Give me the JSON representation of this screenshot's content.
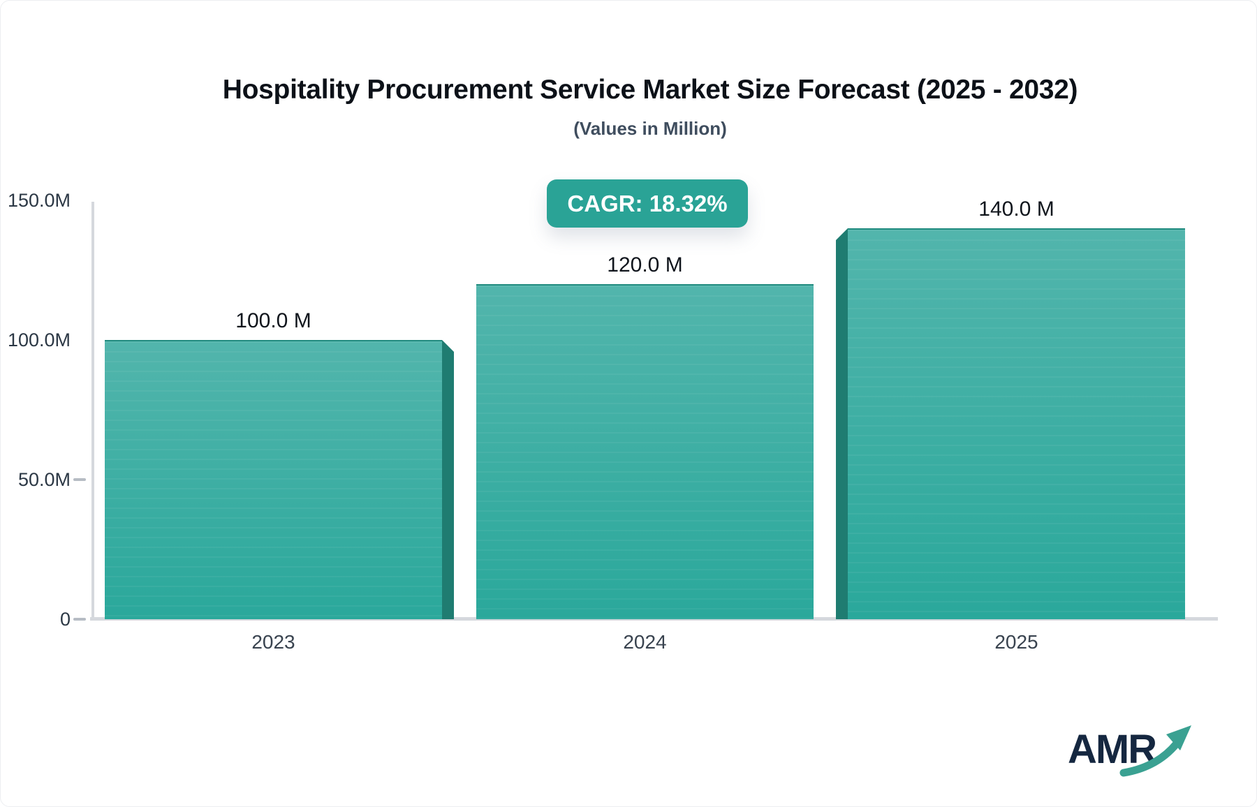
{
  "title": "Hospitality Procurement Service Market Size Forecast (2025 - 2032)",
  "subtitle": "(Values in Million)",
  "cagr_badge": "CAGR: 18.32%",
  "logo": {
    "text": "AMR",
    "arrow_icon": "trending-up-arrow"
  },
  "chart_data": {
    "type": "bar",
    "title": "Hospitality Procurement Service Market Size Forecast (2025 - 2032)",
    "subtitle": "(Values in Million)",
    "unit": "Million (M)",
    "cagr_percent": 18.32,
    "categories": [
      "2023",
      "2024",
      "2025"
    ],
    "values": [
      100.0,
      120.0,
      140.0
    ],
    "value_labels": [
      "100.0 M",
      "120.0 M",
      "140.0 M"
    ],
    "xlabel": "",
    "ylabel": "",
    "ylim": [
      0,
      150
    ],
    "grid": false,
    "legend": null,
    "y_ticks": [
      {
        "label": "150.0M",
        "value": 150,
        "dash": false
      },
      {
        "label": "100.0M",
        "value": 100,
        "dash": false
      },
      {
        "label": "50.0M",
        "value": 50,
        "dash": true
      },
      {
        "label": "0",
        "value": 0,
        "dash": true
      }
    ],
    "bar_style": {
      "gradient_top": "#52b5ac",
      "gradient_bottom": "#2aa89b",
      "side_color": "#1f7c71",
      "sides": [
        "right",
        "none",
        "left"
      ]
    }
  },
  "colors": {
    "background": "#ffffff",
    "title_text": "#0c1118",
    "subtitle_text": "#3f4d5e",
    "badge_bg": "#2aa396",
    "badge_text": "#ffffff",
    "axis_line": "#d5d8dd",
    "tick_text": "#2c3845",
    "category_text": "#39434f",
    "value_text": "#10151c",
    "logo_navy": "#152740",
    "logo_teal": "#3aa192"
  }
}
